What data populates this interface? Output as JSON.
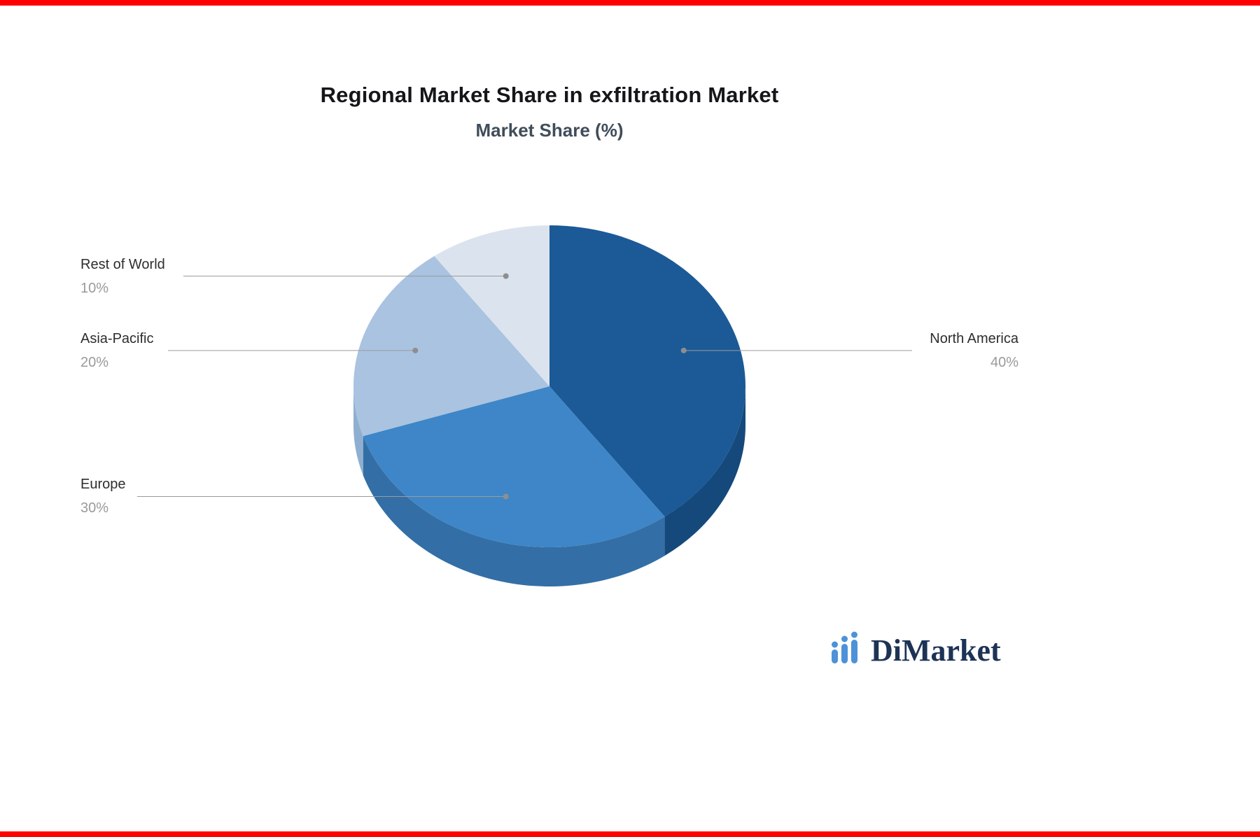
{
  "page": {
    "accent_color": "#ff0000",
    "background": "#ffffff"
  },
  "chart_data": {
    "type": "pie",
    "title": "Regional Market Share in exfiltration Market",
    "subtitle": "Market Share (%)",
    "unit": "%",
    "style": "3d-pie",
    "start_angle_deg": 0,
    "direction": "clockwise",
    "legend_position": "callout-labels",
    "slices": [
      {
        "label": "North America",
        "value": 40,
        "percent_label": "40%",
        "color": "#1b5a96",
        "side_color": "#15497c"
      },
      {
        "label": "Europe",
        "value": 30,
        "percent_label": "30%",
        "color": "#3e86c7",
        "side_color": "#336fa6"
      },
      {
        "label": "Asia-Pacific",
        "value": 20,
        "percent_label": "20%",
        "color": "#a9c3e0",
        "side_color": "#8fafd0"
      },
      {
        "label": "Rest of World",
        "value": 10,
        "percent_label": "10%",
        "color": "#dbe3ee",
        "side_color": "#c4d2e4"
      }
    ],
    "leader_line_color": "#9b9b9b",
    "leader_dot_color": "#8e8e8e"
  },
  "brand": {
    "name": "DiMarket",
    "logo_icon": "bar-chart-icon",
    "text_color": "#1d3356",
    "icon_color": "#4d92d8"
  }
}
